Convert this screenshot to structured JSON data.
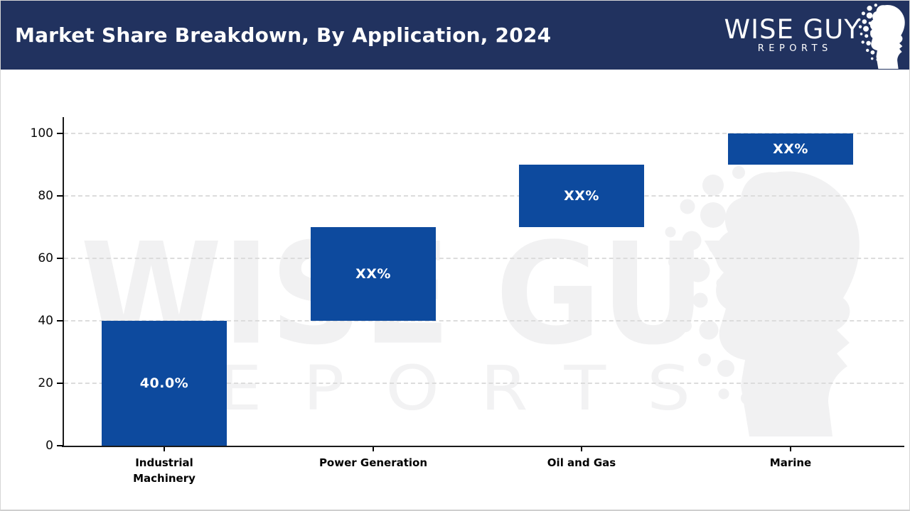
{
  "theme": {
    "header_bg": "#21325f",
    "bar_color": "#0d4a9e",
    "grid_color": "#dcdcdc",
    "watermark_color": "#f1f1f2"
  },
  "header": {
    "title": "Market Share Breakdown, By Application, 2024",
    "logo": {
      "line1": "WISE GUY",
      "line2": "REPORTS"
    }
  },
  "watermark": {
    "line1": "WISE GUY",
    "line2": "REPORTS"
  },
  "chart_data": {
    "type": "bar",
    "variant": "floating-waterfall",
    "title": "Market Share Breakdown, By Application, 2024",
    "categories": [
      "Industrial\nMachinery",
      "Power Generation",
      "Oil and Gas",
      "Marine"
    ],
    "segments": [
      {
        "category": "Industrial Machinery",
        "start": 0,
        "end": 40,
        "value": 40,
        "label": "40.0%"
      },
      {
        "category": "Power Generation",
        "start": 40,
        "end": 70,
        "value": 30,
        "label": "XX%"
      },
      {
        "category": "Oil and Gas",
        "start": 70,
        "end": 90,
        "value": 20,
        "label": "XX%"
      },
      {
        "category": "Marine",
        "start": 90,
        "end": 100,
        "value": 10,
        "label": "XX%"
      }
    ],
    "y_ticks": [
      0,
      20,
      40,
      60,
      80,
      100
    ],
    "ylim": [
      0,
      105
    ],
    "xlabel": "",
    "ylabel": "",
    "grid": "horizontal-dashed",
    "legend": "none",
    "bar_color": "#0d4a9e",
    "bar_label_color": "#ffffff"
  }
}
